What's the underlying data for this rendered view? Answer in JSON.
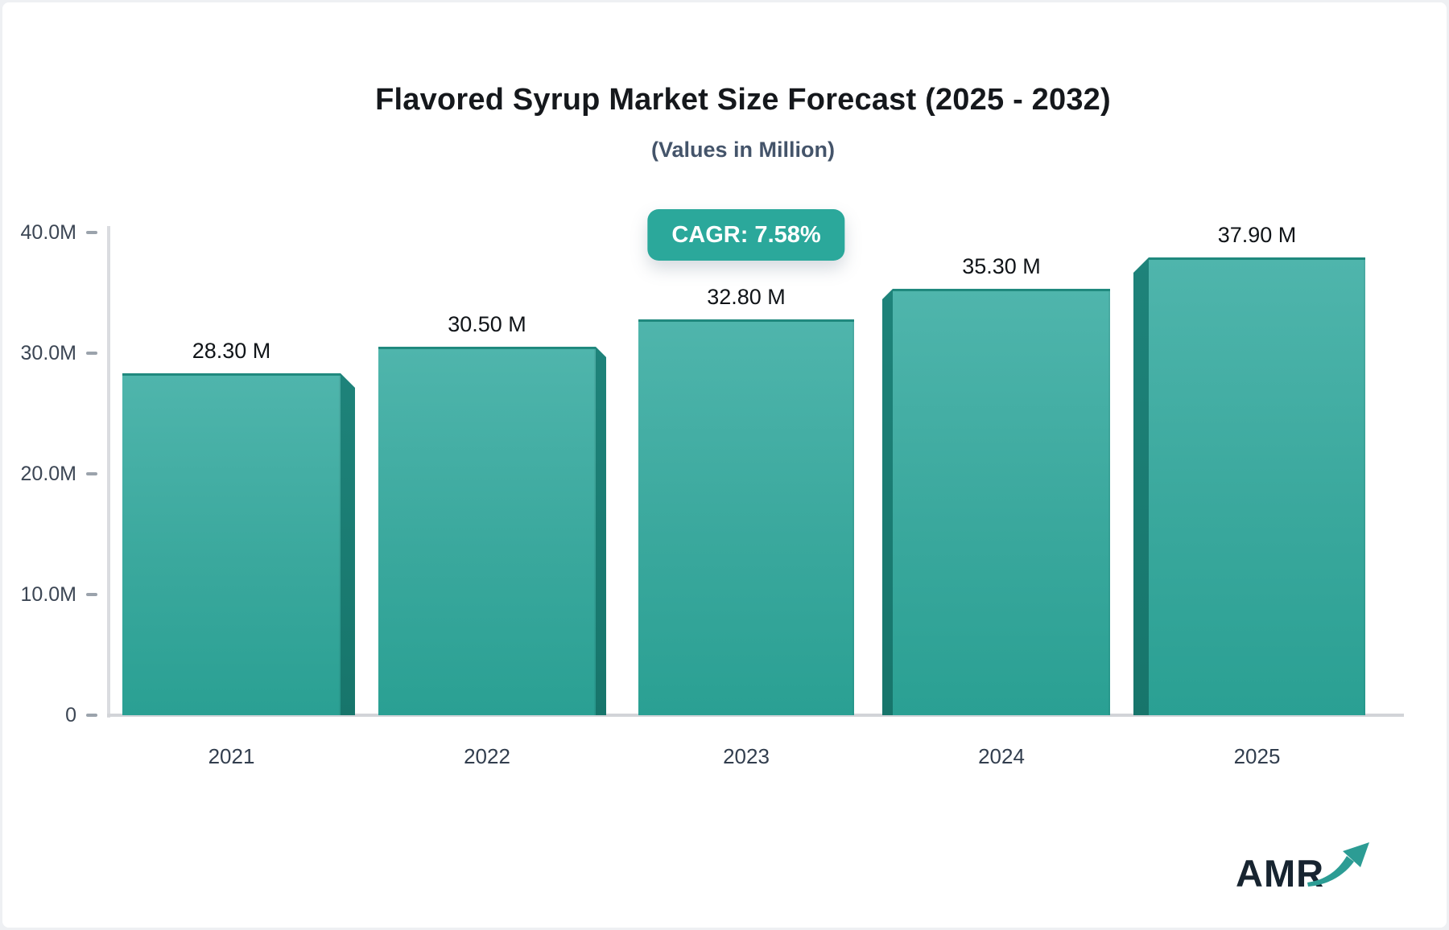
{
  "chart_data": {
    "type": "bar",
    "title": "Flavored Syrup Market Size Forecast (2025 - 2032)",
    "subtitle": "(Values in Million)",
    "cagr_label": "CAGR: 7.58%",
    "categories": [
      "2021",
      "2022",
      "2023",
      "2024",
      "2025"
    ],
    "values": [
      28.3,
      30.5,
      32.8,
      35.3,
      37.9
    ],
    "bar_labels": [
      "28.30 M",
      "30.50 M",
      "32.80 M",
      "35.30 M",
      "37.90 M"
    ],
    "xlabel": "",
    "ylabel": "",
    "ylim": [
      0,
      40
    ],
    "y_ticks": [
      {
        "value": 0,
        "label": "0"
      },
      {
        "value": 10,
        "label": "10.0M"
      },
      {
        "value": 20,
        "label": "20.0M"
      },
      {
        "value": 30,
        "label": "30.0M"
      },
      {
        "value": 40,
        "label": "40.0M"
      }
    ],
    "grid": false,
    "legend": false
  },
  "colors": {
    "bar_top": "#4FB5AC",
    "bar_mid": "#3AA89D",
    "bar_bottom": "#2AA093",
    "bar_side_top": "#1E837A",
    "bar_side_bottom": "#17756B",
    "badge_bg": "#2BA89B",
    "axis_line": "#DADCE0",
    "baseline": "#D2D4D8",
    "tick_text": "#3C4654",
    "title_text": "#15181C",
    "subtitle_text": "#44546A",
    "value_text": "#101418",
    "year_text": "#323E4E",
    "logo_text_color": "#172430",
    "logo_arrow_color": "#2C9C94"
  },
  "logo": {
    "text": "AMR"
  }
}
